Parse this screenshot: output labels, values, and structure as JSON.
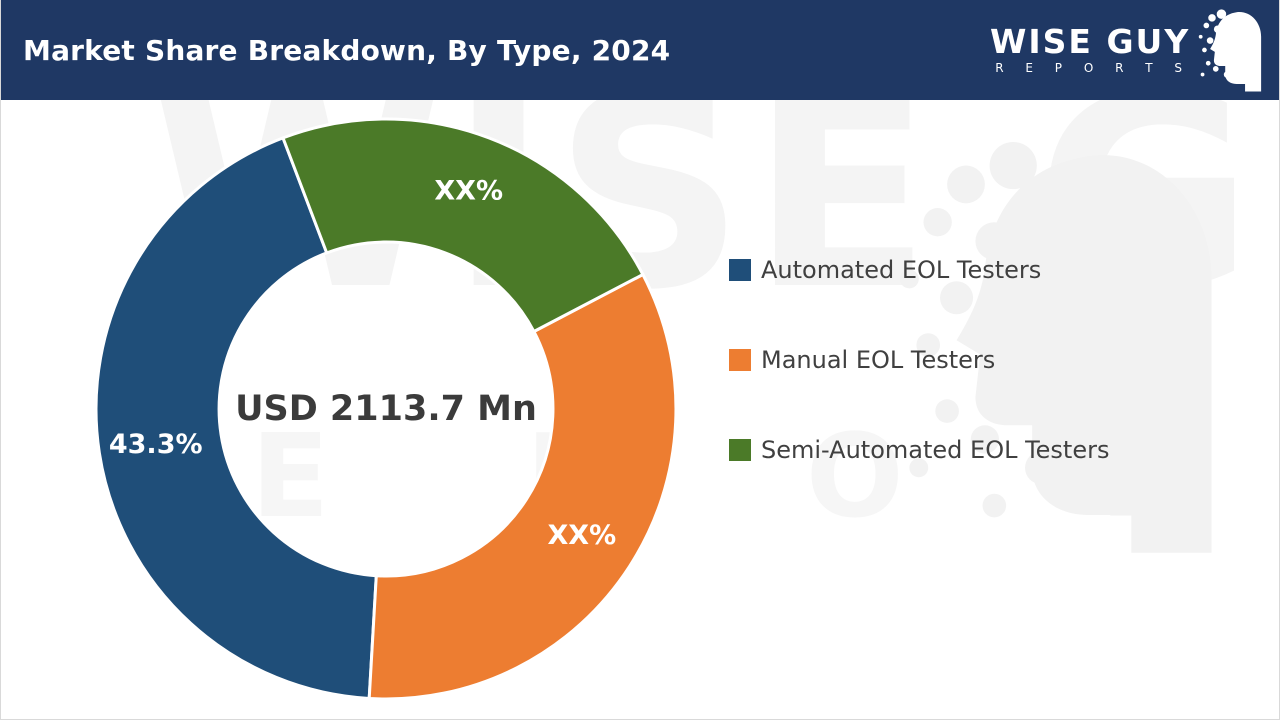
{
  "header": {
    "title": "Market Share Breakdown, By Type, 2024",
    "bg_color": "#1f3864",
    "logo": {
      "line1": "WISE GUY",
      "line2": "R E P O R T S"
    }
  },
  "chart_data": {
    "type": "pie",
    "subtype": "donut",
    "title": "Market Share Breakdown, By Type, 2024",
    "center_label": "USD 2113.7 Mn",
    "start_angle_deg": 110.8,
    "direction": "counterclockwise",
    "outer_radius": 290,
    "inner_radius": 167,
    "label_radius": 233,
    "segments": [
      {
        "name": "Automated EOL Testers",
        "label": "43.3%",
        "value_pct": 43.3,
        "color": "#1f4e79"
      },
      {
        "name": "Manual EOL Testers",
        "label": "XX%",
        "value_pct": 33.6,
        "color": "#ed7d31"
      },
      {
        "name": "Semi-Automated EOL Testers",
        "label": "XX%",
        "value_pct": 23.1,
        "color": "#4b7a28"
      }
    ],
    "legend_position": "right",
    "grid": false
  },
  "watermark": {
    "line1": "WISE GUY",
    "line2": "REPORTS"
  },
  "colors": {
    "header_bg": "#1f3864",
    "blue_segment": "#1f4e79",
    "orange_segment": "#ed7d31",
    "green_segment": "#4b7a28",
    "text_dark": "#404040",
    "watermark_gray": "#f4f4f4",
    "border_gray": "#d9d9d9"
  }
}
